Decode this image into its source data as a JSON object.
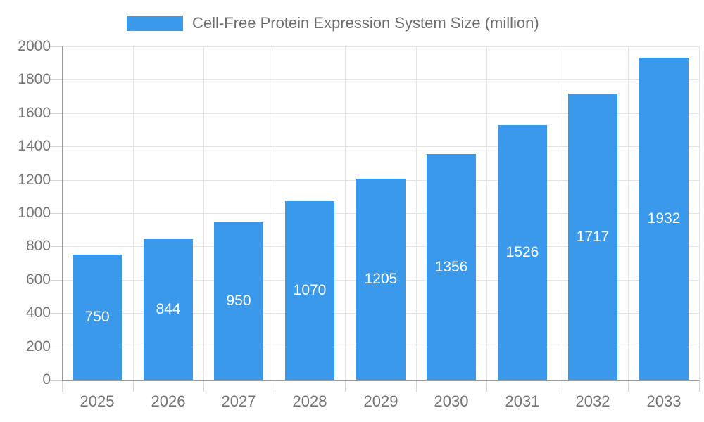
{
  "chart_data": {
    "type": "bar",
    "title": "Cell-Free Protein Expression System Size (million)",
    "legend_position": "top",
    "legend_entries": [
      "Cell-Free Protein Expression System Size (million)"
    ],
    "categories": [
      "2025",
      "2026",
      "2027",
      "2028",
      "2029",
      "2030",
      "2031",
      "2032",
      "2033"
    ],
    "values": [
      750,
      844,
      950,
      1070,
      1205,
      1356,
      1526,
      1717,
      1932
    ],
    "bar_value_labels": [
      "750",
      "844",
      "950",
      "1070",
      "1205",
      "1356",
      "1526",
      "1717",
      "1932"
    ],
    "xlabel": "",
    "ylabel": "",
    "ylim": [
      0,
      2000
    ],
    "ytick_step": 200,
    "ytick_labels": [
      "0",
      "200",
      "400",
      "600",
      "800",
      "1000",
      "1200",
      "1400",
      "1600",
      "1800",
      "2000"
    ],
    "grid": true,
    "colors": {
      "bar": "#3B99EC",
      "axis_line": "#9a9a9a",
      "gridline": "#e4e4e4",
      "tick": "#d6d6d6",
      "axis_text": "#757575",
      "legend_text": "#6e6e6e",
      "bar_label_text": "#ffffff",
      "background": "#ffffff"
    }
  }
}
